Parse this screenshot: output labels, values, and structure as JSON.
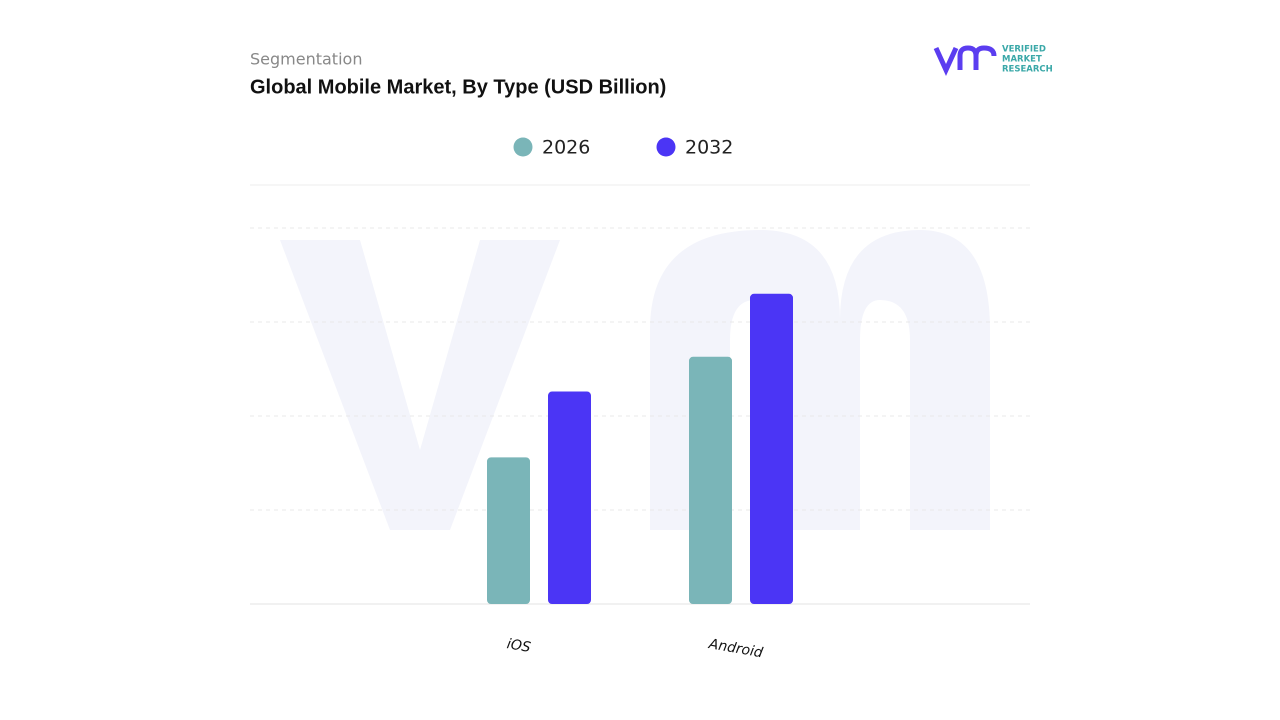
{
  "header": {
    "kicker": "Segmentation",
    "brand": [
      "VERIFIED",
      "MARKET",
      "RESEARCH"
    ]
  },
  "chart_data": {
    "type": "bar",
    "title": "Global Mobile Market, By Type (USD Billion)",
    "categories": [
      "iOS",
      "Android"
    ],
    "series": [
      {
        "name": "2026",
        "color": "#7ab5b8",
        "values": [
          1.56,
          2.63
        ]
      },
      {
        "name": "2032",
        "color": "#4b35f5",
        "values": [
          2.26,
          3.3
        ]
      }
    ],
    "ylim": [
      0,
      4.5
    ],
    "yticks": [
      0,
      1,
      2,
      3,
      4
    ],
    "grid": true,
    "legend": "top"
  }
}
